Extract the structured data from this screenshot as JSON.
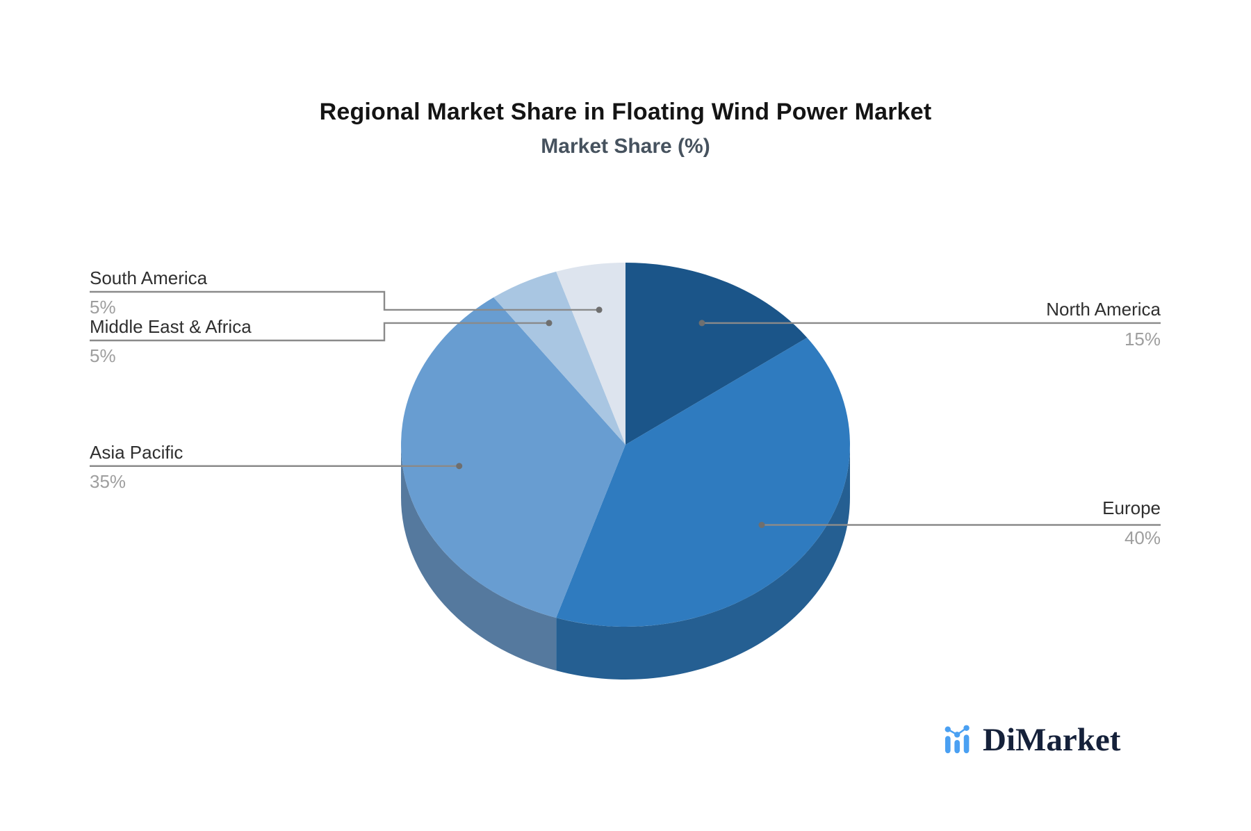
{
  "title": "Regional Market Share in Floating Wind Power Market",
  "subtitle": "Market Share (%)",
  "brand": {
    "name": "DiMarket",
    "icon": "bar-chart-trend-icon",
    "text_color": "#15213a",
    "icon_color": "#4aa0f2"
  },
  "chart_data": {
    "type": "pie",
    "effect": "3d",
    "title": "Regional Market Share in Floating Wind Power Market",
    "subtitle": "Market Share (%)",
    "unit": "%",
    "start_angle_deg": 0,
    "direction": "clockwise",
    "legend": "none",
    "categories": [
      "North America",
      "Europe",
      "Asia Pacific",
      "Middle East & Africa",
      "South America"
    ],
    "values": [
      15,
      40,
      35,
      5,
      5
    ],
    "slices": [
      {
        "label": "North America",
        "value": 15,
        "pct_label": "15%",
        "color": "#1b5589",
        "side_color": "#14436c"
      },
      {
        "label": "Europe",
        "value": 40,
        "pct_label": "40%",
        "color": "#2f7bbf",
        "side_color": "#255f92"
      },
      {
        "label": "Asia Pacific",
        "value": 35,
        "pct_label": "35%",
        "color": "#689dd1",
        "side_color": "#55799e"
      },
      {
        "label": "Middle East & Africa",
        "value": 5,
        "pct_label": "5%",
        "color": "#a9c6e2",
        "side_color": "#84a0ba"
      },
      {
        "label": "South America",
        "value": 5,
        "pct_label": "5%",
        "color": "#dde4ee",
        "side_color": "#b3bcc9"
      }
    ],
    "label_style": {
      "name_color": "#2f2f2f",
      "pct_color": "#9e9e9e",
      "line_color": "#8a8a8a",
      "dot_color": "#6f6f6f"
    }
  }
}
